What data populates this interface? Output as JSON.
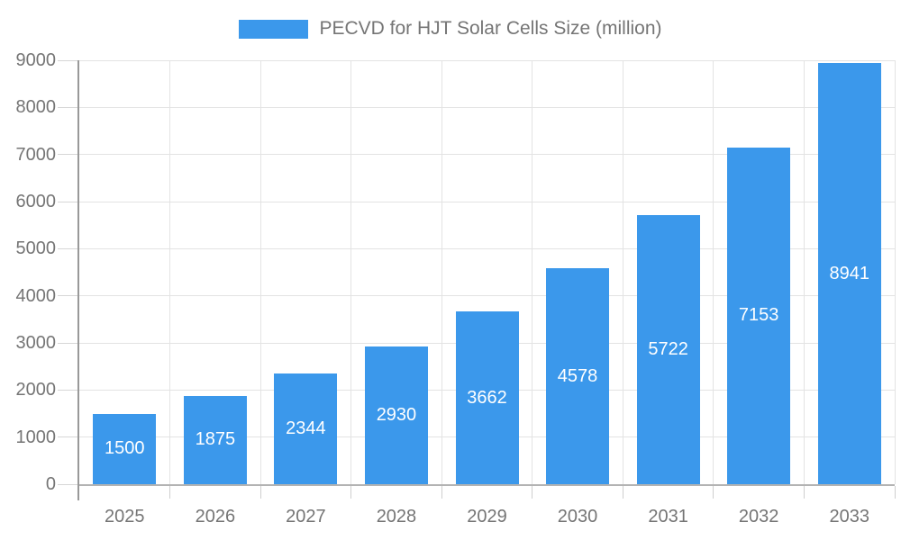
{
  "chart_data": {
    "type": "bar",
    "title": "PECVD for HJT Solar Cells Size (million)",
    "categories": [
      "2025",
      "2026",
      "2027",
      "2028",
      "2029",
      "2030",
      "2031",
      "2032",
      "2033"
    ],
    "values": [
      1500,
      1875,
      2344,
      2930,
      3662,
      4578,
      5722,
      7153,
      8941
    ],
    "xlabel": "",
    "ylabel": "",
    "ylim": [
      0,
      9000
    ],
    "ytick_step": 1000,
    "yticks": [
      0,
      1000,
      2000,
      3000,
      4000,
      5000,
      6000,
      7000,
      8000,
      9000
    ],
    "grid": true,
    "legend_position": "top-center",
    "colors": {
      "bar": "#3b98eb",
      "bar_label": "#ffffff",
      "axis_text": "#757575",
      "grid_line": "#e3e3e3",
      "axis_line": "#b3b3b3",
      "background": "#ffffff"
    }
  },
  "legend": {
    "label": "PECVD for HJT Solar Cells Size (million)"
  }
}
